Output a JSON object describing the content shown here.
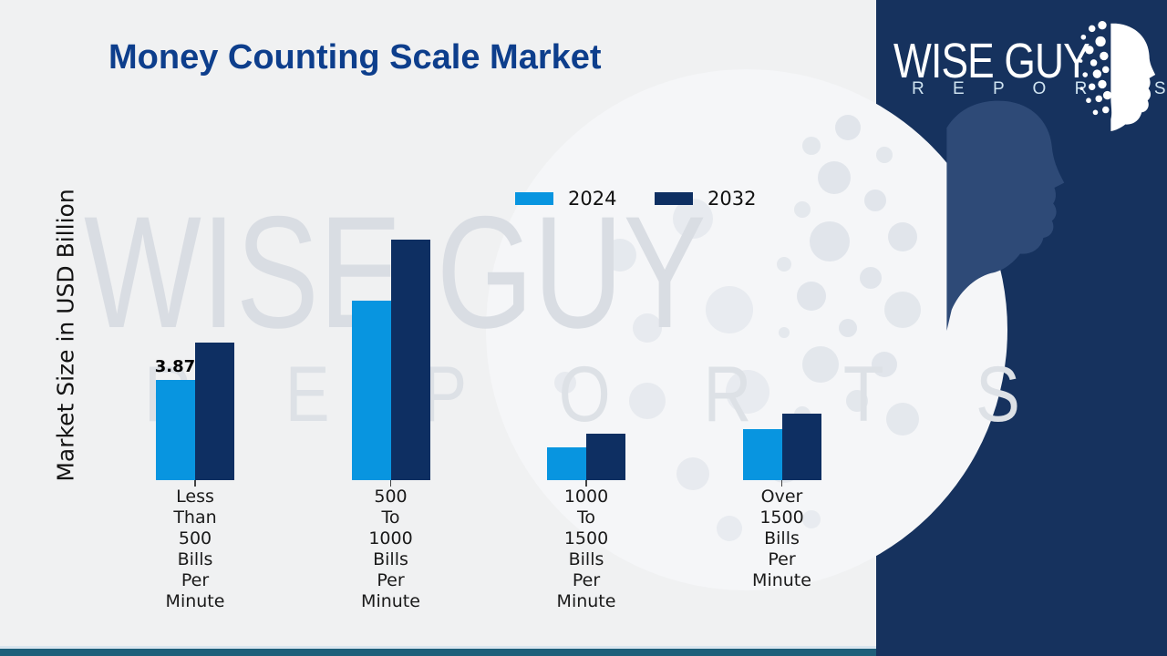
{
  "title": {
    "text": "Money Counting Scale Market",
    "color": "#0d3e8c"
  },
  "y_axis": {
    "label": "Market Size in USD Billion"
  },
  "legend": {
    "items": [
      {
        "label": "2024",
        "color": "#0895e0"
      },
      {
        "label": "2032",
        "color": "#0e2f62"
      }
    ]
  },
  "chart_data": {
    "type": "bar",
    "title": "Money Counting Scale Market",
    "categories": [
      "Less Than 500 Bills Per Minute",
      "500 To 1000 Bills Per Minute",
      "1000 To 1500 Bills Per Minute",
      "Over 1500 Bills Per Minute"
    ],
    "series": [
      {
        "name": "2024",
        "color": "#0895e0",
        "values": [
          3.87,
          6.93,
          1.27,
          1.97
        ]
      },
      {
        "name": "2032",
        "color": "#0e2f62",
        "values": [
          5.31,
          9.29,
          1.79,
          2.57
        ]
      }
    ],
    "value_labels": [
      {
        "series_index": 0,
        "category_index": 0,
        "text": "3.87"
      }
    ],
    "xlabel": "",
    "ylabel": "Market Size in USD Billion",
    "ylim": [
      0,
      10
    ],
    "grid": false,
    "legend_position": "top-center"
  },
  "watermark": {
    "line1": "WISE GUY",
    "line2": "R E P O R T S"
  },
  "brand": {
    "name_line1": "WISE GUY",
    "name_line2": "R E P O R T S",
    "panel_color": "#16325e",
    "face_color": "#2e4a77",
    "accent_strip_color": "#1e5f7a"
  }
}
